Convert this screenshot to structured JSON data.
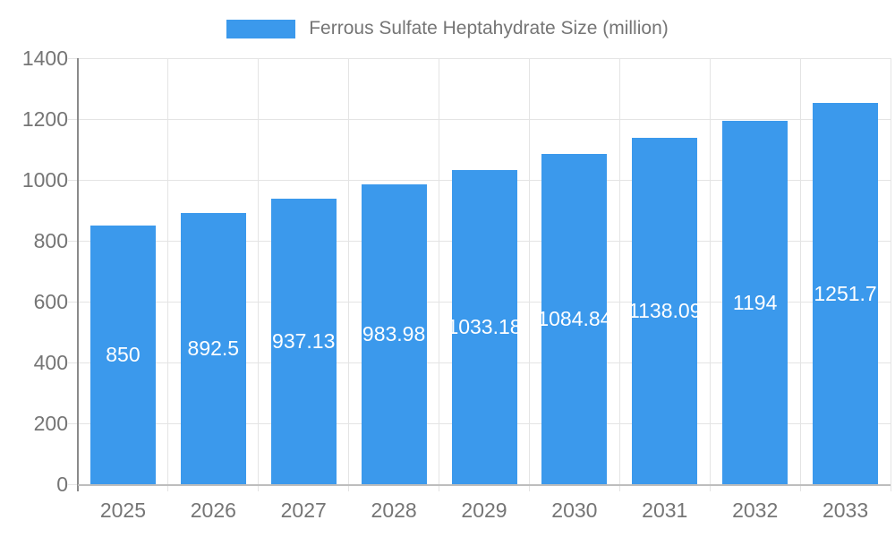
{
  "chart_data": {
    "type": "bar",
    "title": "Ferrous Sulfate Heptahydrate Size (million)",
    "categories": [
      "2025",
      "2026",
      "2027",
      "2028",
      "2029",
      "2030",
      "2031",
      "2032",
      "2033"
    ],
    "values": [
      850,
      892.5,
      937.13,
      983.98,
      1033.18,
      1084.84,
      1138.09,
      1194,
      1251.7
    ],
    "value_labels": [
      "850",
      "892.5",
      "937.13",
      "983.98",
      "1033.18",
      "1084.84",
      "1138.09",
      "1194",
      "1251.7"
    ],
    "xlabel": "",
    "ylabel": "",
    "ylim": [
      0,
      1400
    ],
    "ytick_step": 200,
    "yticks": [
      0,
      200,
      400,
      600,
      800,
      1000,
      1200,
      1400
    ],
    "grid": true,
    "legend_position": "top",
    "colors": {
      "bar": "#3B99EC",
      "bar_value_text": "#ffffff",
      "axis_text": "#757575",
      "grid_line": "#e4e4e4",
      "y_axis_line": "#8a8a8a",
      "x_axis_line": "#bdbdbd",
      "background": "#ffffff"
    }
  },
  "legend": {
    "series_label": "Ferrous Sulfate Heptahydrate Size (million)",
    "swatch_color": "#3B99EC"
  }
}
